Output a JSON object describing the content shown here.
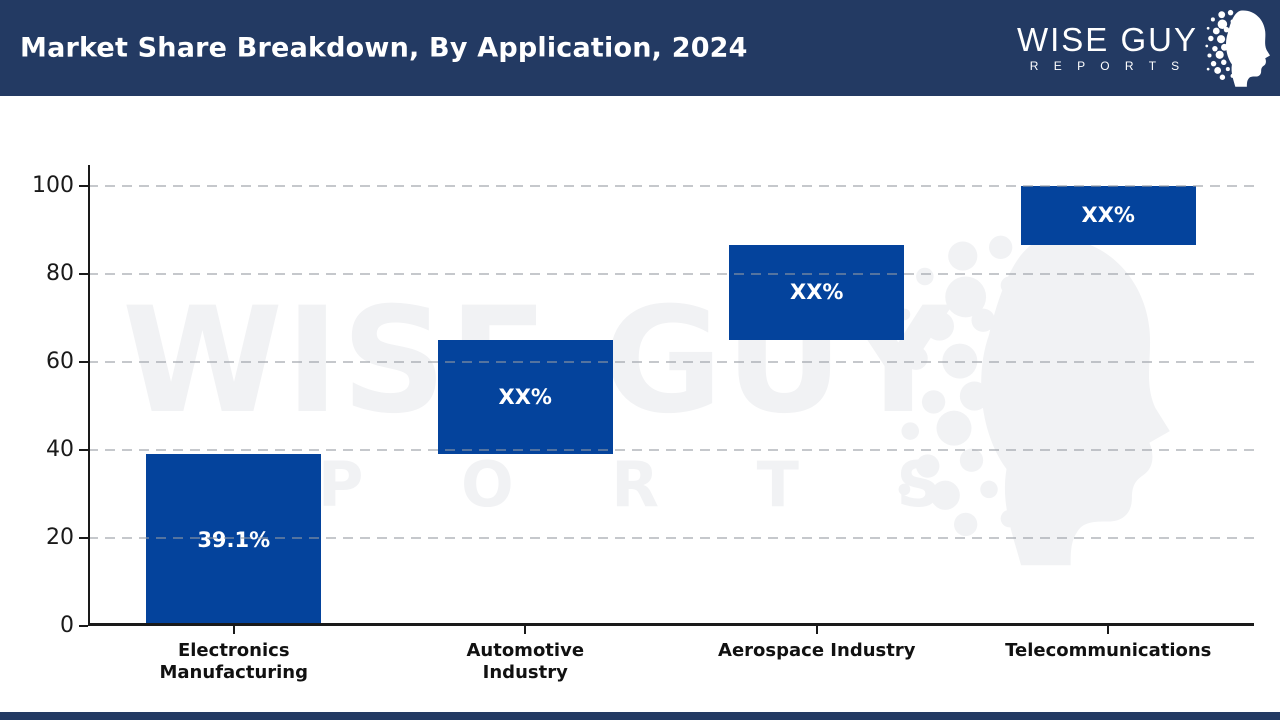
{
  "header": {
    "title": "Market Share Breakdown, By Application, 2024",
    "logo_line1": "WISE GUY",
    "logo_line2": "R E P O R T S"
  },
  "watermark": {
    "line1": "WISE GUY",
    "line2": "E P O R T S"
  },
  "colors": {
    "header_bg": "#233a63",
    "bar": "#04439c",
    "bar_label": "#ffffff",
    "grid": "rgba(150,155,162,0.55)",
    "axis": "#1a1a1a",
    "watermark": "#f1f2f4"
  },
  "chart_data": {
    "type": "bar",
    "subtype": "waterfall",
    "title": "Market Share Breakdown, By Application, 2024",
    "categories": [
      "Electronics\nManufacturing",
      "Automotive\nIndustry",
      "Aerospace Industry",
      "Telecommunications"
    ],
    "segments": [
      {
        "category": "Electronics Manufacturing",
        "start": 0,
        "end": 39.1,
        "label": "39.1%"
      },
      {
        "category": "Automotive Industry",
        "start": 39.1,
        "end": 65,
        "label": "XX%"
      },
      {
        "category": "Aerospace Industry",
        "start": 65,
        "end": 86.6,
        "label": "XX%"
      },
      {
        "category": "Telecommunications",
        "start": 86.6,
        "end": 100,
        "label": "XX%"
      }
    ],
    "xlabel": "",
    "ylabel": "",
    "ylim": [
      0,
      100
    ],
    "yticks": [
      0,
      20,
      40,
      60,
      80,
      100
    ],
    "grid": "dashed-horizontal",
    "legend": "none",
    "bar_width_fraction": 0.6
  }
}
